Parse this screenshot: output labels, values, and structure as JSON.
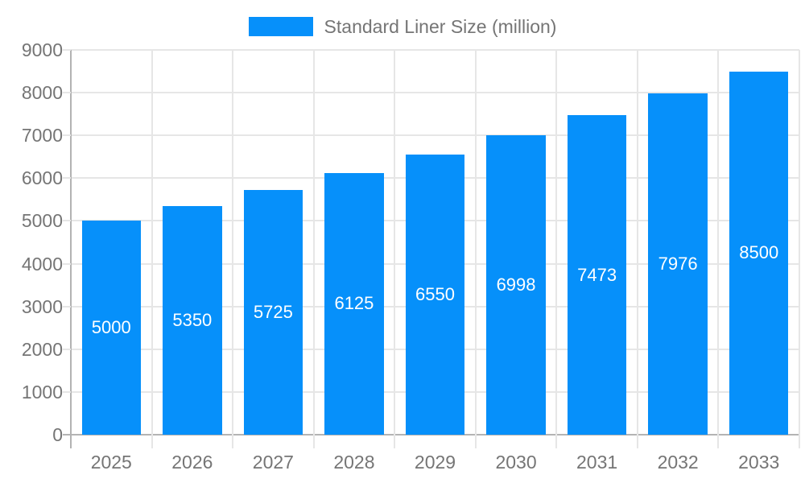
{
  "chart_data": {
    "type": "bar",
    "title": "Standard Liner Size (million)",
    "categories": [
      "2025",
      "2026",
      "2027",
      "2028",
      "2029",
      "2030",
      "2031",
      "2032",
      "2033"
    ],
    "series": [
      {
        "name": "Standard Liner Size (million)",
        "values": [
          5000,
          5350,
          5725,
          6125,
          6550,
          6998,
          7473,
          7976,
          8500
        ]
      }
    ],
    "value_labels": [
      "5000",
      "5350",
      "5725",
      "6125",
      "6550",
      "6998",
      "7473",
      "7976",
      "8500"
    ],
    "ytick_labels": [
      "0",
      "1000",
      "2000",
      "3000",
      "4000",
      "5000",
      "6000",
      "7000",
      "8000",
      "9000"
    ],
    "ylim": [
      0,
      9000
    ],
    "ytick_step": 1000,
    "xlabel": "",
    "ylabel": "",
    "grid": true,
    "legend_position": "top",
    "colors": {
      "bar": "#0690fa",
      "value_label": "#ffffff",
      "axis_label": "#757575",
      "gridline": "#e6e6e6",
      "axis_line": "#b3b3b3",
      "background": "#ffffff"
    }
  }
}
